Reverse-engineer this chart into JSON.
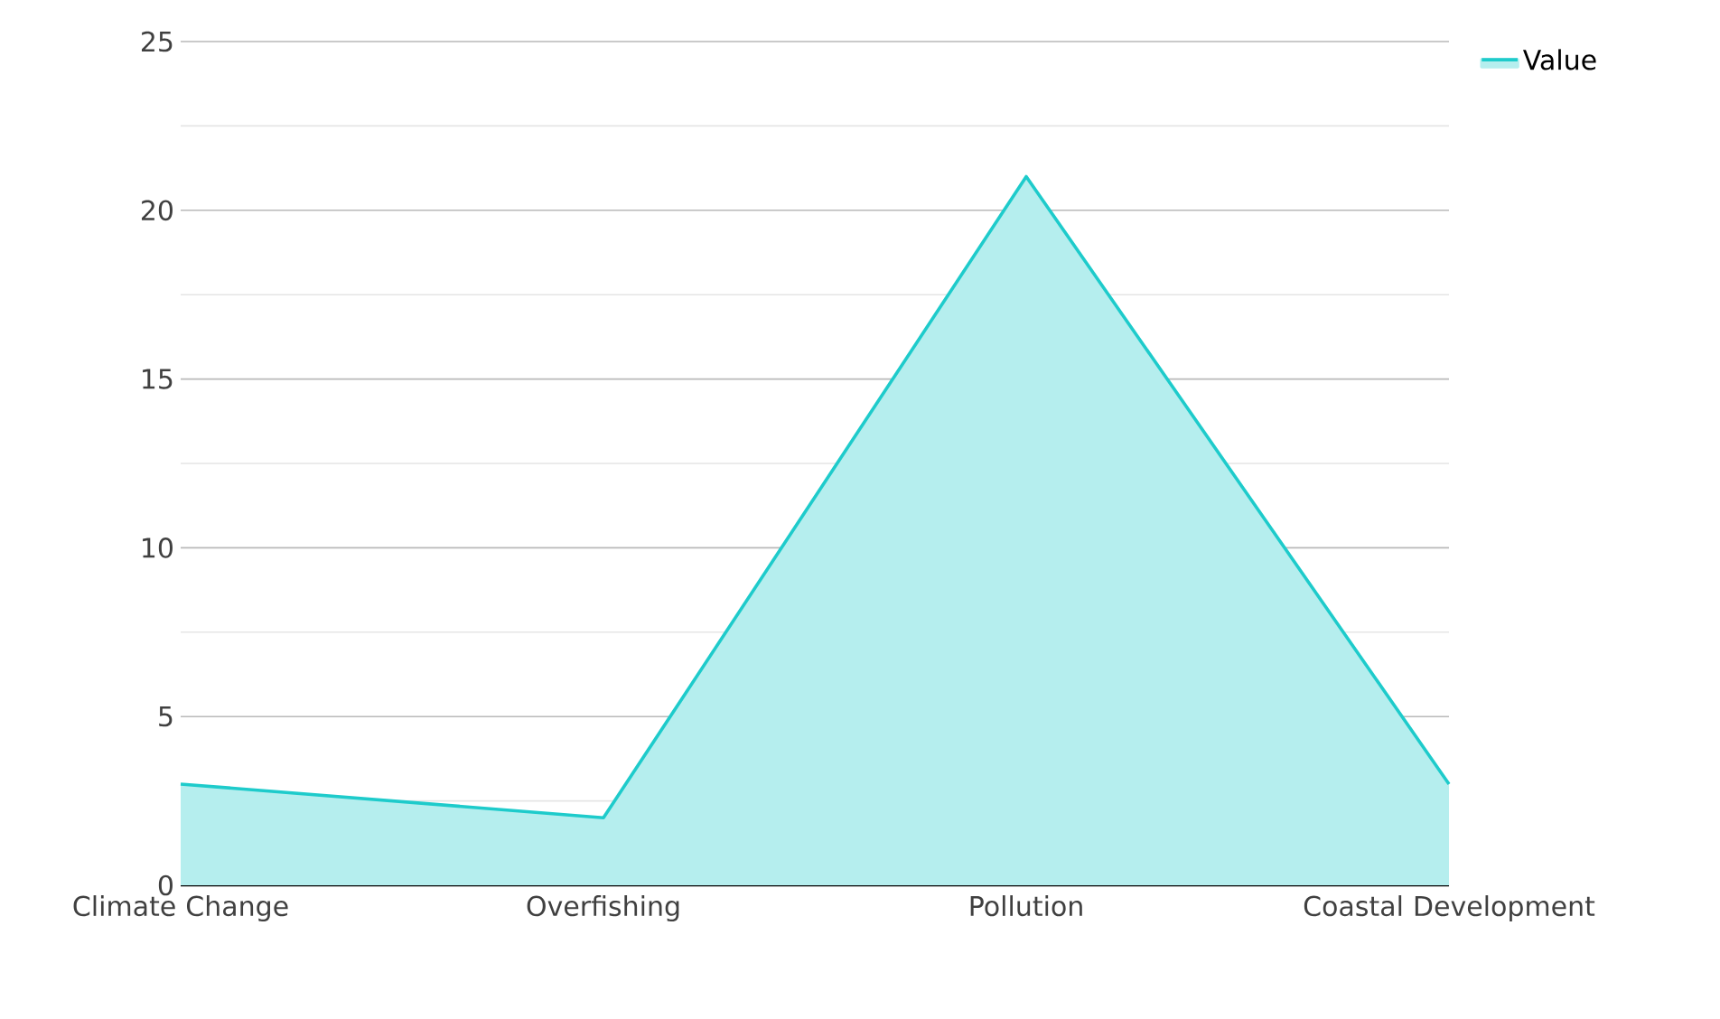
{
  "chart_data": {
    "type": "area",
    "categories": [
      "Climate Change",
      "Overfishing",
      "Pollution",
      "Coastal Development"
    ],
    "series": [
      {
        "name": "Value",
        "color": "#1ecbcb",
        "values": [
          3,
          2,
          21,
          3
        ]
      }
    ],
    "ylim": [
      0,
      25
    ],
    "yticks": [
      0,
      5,
      10,
      15,
      20,
      25
    ],
    "grid": "y",
    "legend": "top right"
  }
}
